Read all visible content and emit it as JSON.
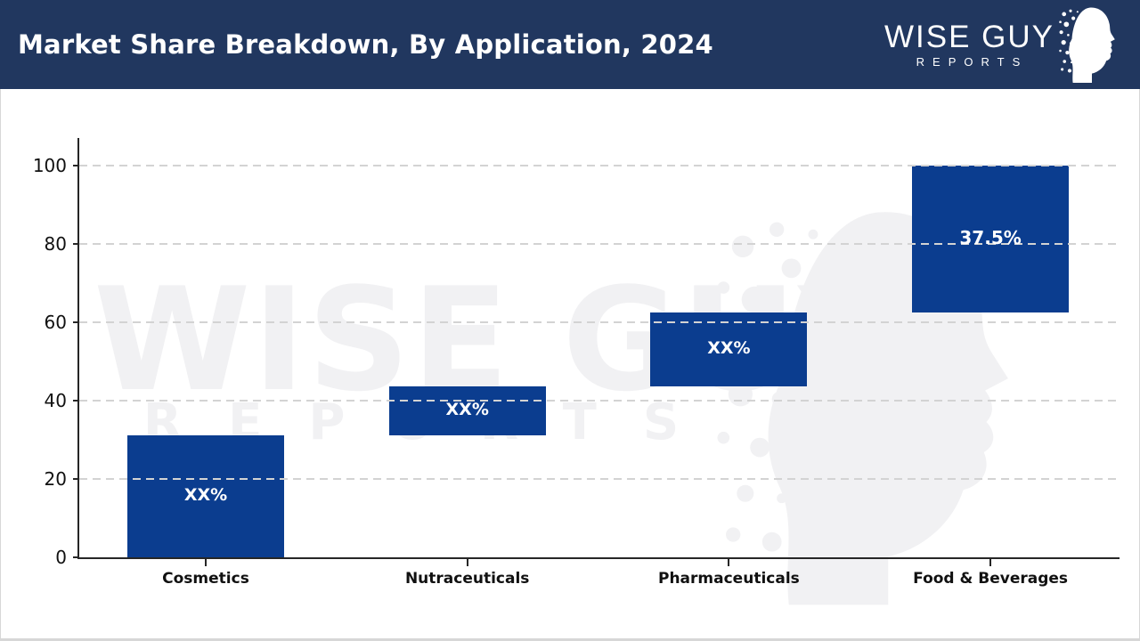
{
  "header": {
    "title": "Market Share Breakdown, By Application, 2024",
    "logo": {
      "line1": "WISE GUY",
      "line2": "REPORTS"
    }
  },
  "watermark": {
    "line1": "WISE GUY",
    "line2": "REPORTS"
  },
  "chart_data": {
    "type": "bar",
    "subtype": "waterfall",
    "title": "Market Share Breakdown, By Application, 2024",
    "xlabel": "",
    "ylabel": "",
    "categories": [
      "Cosmetics",
      "Nutraceuticals",
      "Pharmaceuticals",
      "Food & Beverages"
    ],
    "segments": [
      {
        "category": "Cosmetics",
        "start": 0,
        "end": 31,
        "value": 31,
        "label": "XX%"
      },
      {
        "category": "Nutraceuticals",
        "start": 31,
        "end": 43.5,
        "value": 12.5,
        "label": "XX%"
      },
      {
        "category": "Pharmaceuticals",
        "start": 43.5,
        "end": 62.5,
        "value": 19,
        "label": "XX%"
      },
      {
        "category": "Food & Beverages",
        "start": 62.5,
        "end": 100,
        "value": 37.5,
        "label": "37.5%"
      }
    ],
    "ylim": [
      0,
      107
    ],
    "yticks": [
      0,
      20,
      40,
      60,
      80,
      100
    ],
    "grid": "horizontal-dashed",
    "legend": "none",
    "bar_color": "#0b3d8f"
  },
  "colors": {
    "header_bg": "#21375f",
    "bar": "#0b3d8f",
    "grid": "#d3d3d3",
    "axis": "#262626",
    "watermark": "#f1f1f3",
    "sheet_border": "#d7d7d7"
  }
}
